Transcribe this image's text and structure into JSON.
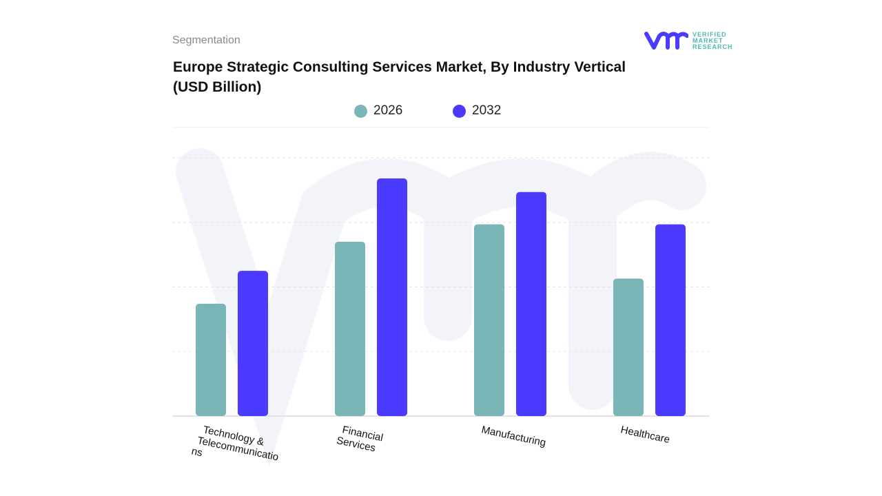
{
  "header": {
    "segment_label": "Segmentation",
    "title": "Europe Strategic Consulting Services Market, By Industry Vertical (USD Billion)"
  },
  "logo": {
    "text_lines": [
      "VERIFIED",
      "MARKET",
      "RESEARCH"
    ]
  },
  "colors": {
    "2026": "#7ab5b8",
    "2032": "#4b3aff"
  },
  "chart_data": {
    "type": "bar",
    "title": "Europe Strategic Consulting Services Market, By Industry Vertical (USD Billion)",
    "categories": [
      "Technology & Telecommunications",
      "Financial Services",
      "Manufacturing",
      "Healthcare"
    ],
    "tick_label_lines": [
      [
        "Technology &",
        "Telecommunicatio",
        "ns"
      ],
      [
        "Financial",
        "Services"
      ],
      [
        "Manufacturing"
      ],
      [
        "Healthcare"
      ]
    ],
    "series": [
      {
        "name": "2026",
        "values": [
          1.74,
          2.7,
          2.97,
          2.13
        ]
      },
      {
        "name": "2032",
        "values": [
          2.25,
          3.68,
          3.47,
          2.97
        ]
      }
    ],
    "ylim": [
      0,
      4
    ],
    "grid": true,
    "legend": "top-center",
    "xlabel": "",
    "ylabel": ""
  }
}
